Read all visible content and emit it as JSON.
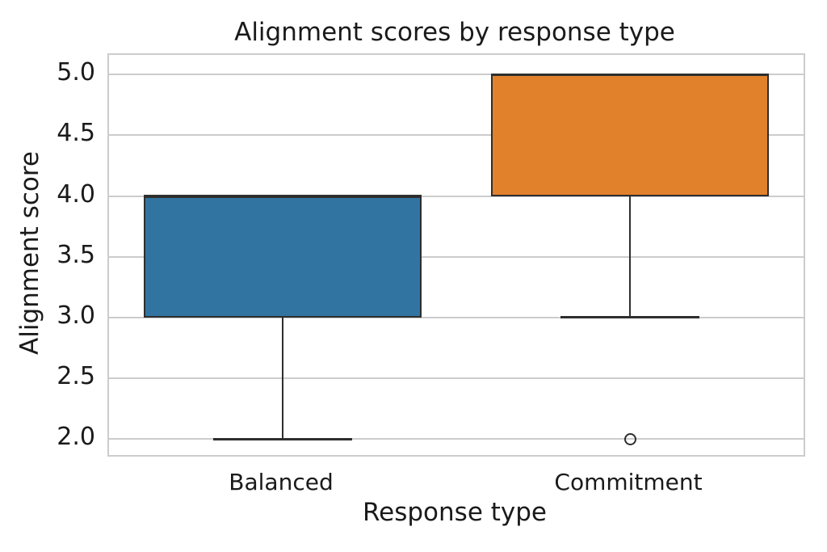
{
  "chart_data": {
    "type": "box",
    "title": "Alignment scores by response type",
    "xlabel": "Response type",
    "ylabel": "Alignment score",
    "categories": [
      "Balanced",
      "Commitment"
    ],
    "series": [
      {
        "name": "Balanced",
        "q1": 3.0,
        "median": 4.0,
        "q3": 4.0,
        "whisker_low": 2.0,
        "whisker_high": 4.0,
        "outliers": [],
        "fill_color": "#3274a1"
      },
      {
        "name": "Commitment",
        "q1": 4.0,
        "median": 5.0,
        "q3": 5.0,
        "whisker_low": 3.0,
        "whisker_high": 5.0,
        "outliers": [
          2.0
        ],
        "fill_color": "#e1812c"
      }
    ],
    "yticks": [
      5.0,
      4.5,
      4.0,
      3.5,
      3.0,
      2.5,
      2.0
    ],
    "ytick_labels": [
      "5.0",
      "4.5",
      "4.0",
      "3.5",
      "3.0",
      "2.5",
      "2.0"
    ],
    "ylim": [
      1.87,
      5.16
    ],
    "grid": true,
    "legend": false,
    "colors": {
      "grid": "#cccccc",
      "spine": "#cccccc",
      "box_edge": "#2e2e2e",
      "text": "#1a1a1a",
      "background": "#ffffff"
    }
  }
}
